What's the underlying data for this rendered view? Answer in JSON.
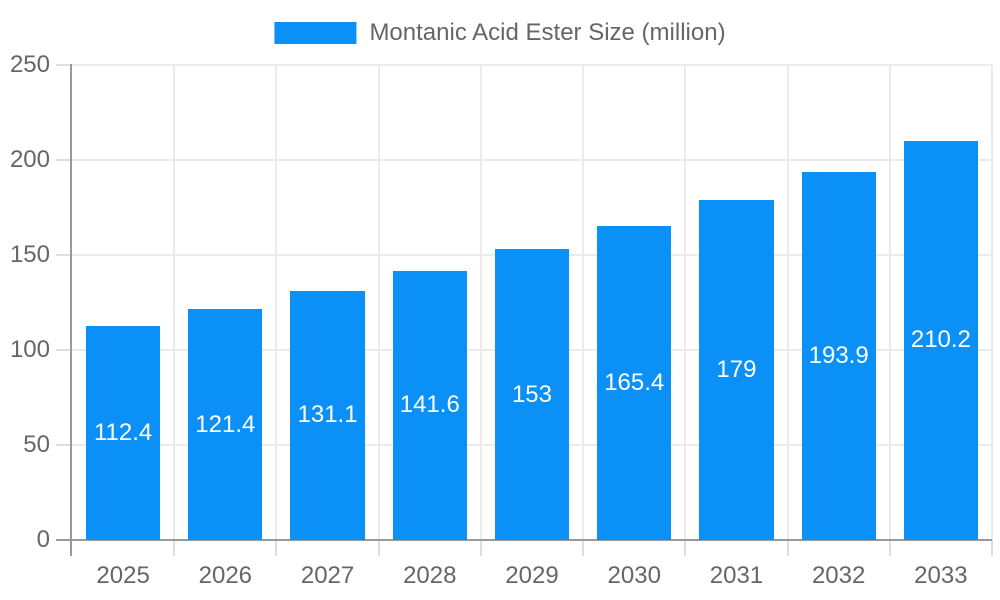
{
  "legend": {
    "label": "Montanic Acid Ester Size (million)"
  },
  "colors": {
    "bar": "#0a90f7",
    "axis_line": "#999999",
    "gridline": "#ebebeb",
    "tick": "#dddddd",
    "axis_label": "#666666",
    "value_label": "#ffffff",
    "background": "#ffffff"
  },
  "chart_data": {
    "type": "bar",
    "title": "Montanic Acid Ester Size (million)",
    "categories": [
      "2025",
      "2026",
      "2027",
      "2028",
      "2029",
      "2030",
      "2031",
      "2032",
      "2033"
    ],
    "values": [
      112.4,
      121.4,
      131.1,
      141.6,
      153,
      165.4,
      179,
      193.9,
      210.2
    ],
    "value_labels": [
      "112.4",
      "121.4",
      "131.1",
      "141.6",
      "153",
      "165.4",
      "179",
      "193.9",
      "210.2"
    ],
    "xlabel": "",
    "ylabel": "",
    "ylim": [
      0,
      250
    ],
    "yticks": [
      0,
      50,
      100,
      150,
      200,
      250
    ],
    "grid": true,
    "legend_position": "top",
    "value_label_position": "inside-center"
  }
}
